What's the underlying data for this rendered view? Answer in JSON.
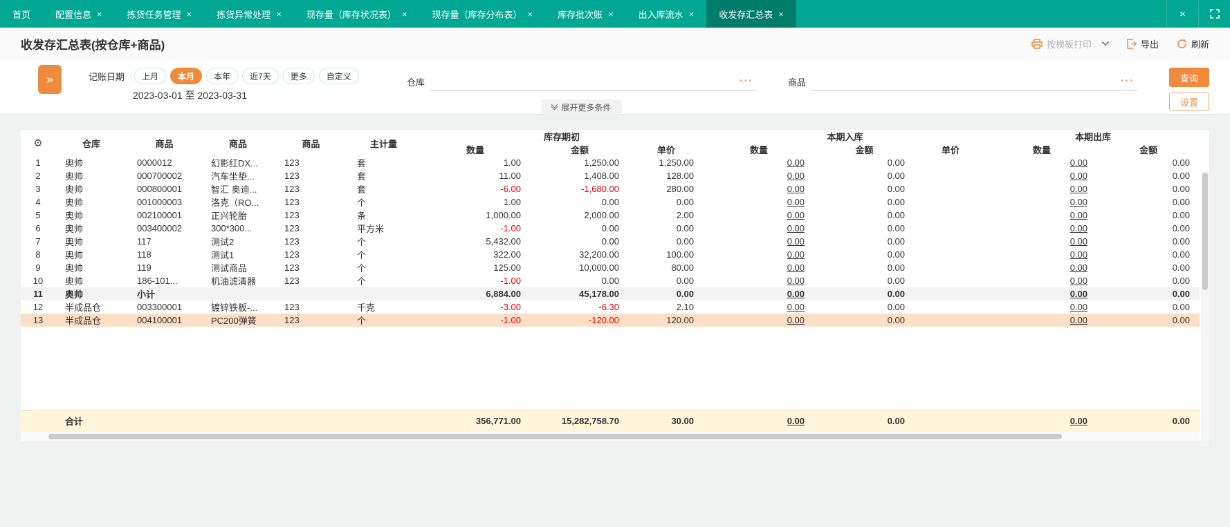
{
  "colors": {
    "teal": "#00a792",
    "teal_active": "#007c6b",
    "orange": "#f08a3c",
    "red_negative": "#e60000",
    "subtotal_bg": "#f3f3f3",
    "selected_row_bg": "#fcdfc6",
    "total_bg": "#fdf6da",
    "header_bg": "#ebebeb"
  },
  "tabs": {
    "items": [
      {
        "label": "首页",
        "closable": false
      },
      {
        "label": "配置信息",
        "closable": true
      },
      {
        "label": "拣货任务管理",
        "closable": true
      },
      {
        "label": "拣货异常处理",
        "closable": true
      },
      {
        "label": "现存量（库存状况表）",
        "closable": true
      },
      {
        "label": "现存量（库存分布表）",
        "closable": true
      },
      {
        "label": "库存批次账",
        "closable": true
      },
      {
        "label": "出入库流水",
        "closable": true
      },
      {
        "label": "收发存汇总表",
        "closable": true
      }
    ],
    "active_index": 8,
    "close_glyph": "×"
  },
  "title": "收发存汇总表(按仓库+商品)",
  "toolbar": {
    "print_label": "按模板打印",
    "export_label": "导出",
    "refresh_label": "刷新"
  },
  "filters": {
    "date_label": "记账日期",
    "date_presets": [
      {
        "label": "上月",
        "active": false
      },
      {
        "label": "本月",
        "active": true
      },
      {
        "label": "本年",
        "active": false
      },
      {
        "label": "近7天",
        "active": false
      },
      {
        "label": "更多",
        "active": false
      },
      {
        "label": "自定义",
        "active": false
      }
    ],
    "date_range": "2023-03-01 至 2023-03-31",
    "warehouse_label": "仓库",
    "product_label": "商品",
    "more_glyph": "···",
    "search_label": "查询",
    "settings_label": "设置",
    "expand_more_label": "展开更多条件",
    "expander_glyph": "»"
  },
  "table": {
    "left_headers": [
      "仓库",
      "商品",
      "商品",
      "商品",
      "主计量"
    ],
    "group_headers": {
      "opening": "库存期初",
      "inbound": "本期入库",
      "outbound": "本期出库"
    },
    "sub_headers": {
      "qty": "数量",
      "amount": "金额",
      "price": "单价"
    },
    "rows": [
      {
        "num": "1",
        "warehouse": "奥帅",
        "code": "0000012",
        "name": "幻影红DX...",
        "spec": "123",
        "unit": "套",
        "opening_qty": "1.00",
        "opening_amount": "1,250.00",
        "opening_price": "1,250.00",
        "inbound_qty": "0.00",
        "inbound_amount": "0.00",
        "inbound_price": "",
        "outbound_qty": "0.00",
        "outbound_amount": "0.00",
        "red": [],
        "style": "normal"
      },
      {
        "num": "2",
        "warehouse": "奥帅",
        "code": "000700002",
        "name": "汽车坐垫...",
        "spec": "123",
        "unit": "套",
        "opening_qty": "11.00",
        "opening_amount": "1,408.00",
        "opening_price": "128.00",
        "inbound_qty": "0.00",
        "inbound_amount": "0.00",
        "inbound_price": "",
        "outbound_qty": "0.00",
        "outbound_amount": "0.00",
        "red": [],
        "style": "normal"
      },
      {
        "num": "3",
        "warehouse": "奥帅",
        "code": "000800001",
        "name": "智汇 奥迪...",
        "spec": "123",
        "unit": "套",
        "opening_qty": "-6.00",
        "opening_amount": "-1,680.00",
        "opening_price": "280.00",
        "inbound_qty": "0.00",
        "inbound_amount": "0.00",
        "inbound_price": "",
        "outbound_qty": "0.00",
        "outbound_amount": "0.00",
        "red": [
          "opening_qty",
          "opening_amount"
        ],
        "style": "normal"
      },
      {
        "num": "4",
        "warehouse": "奥帅",
        "code": "001000003",
        "name": "洛克（RO...",
        "spec": "123",
        "unit": "个",
        "opening_qty": "1.00",
        "opening_amount": "0.00",
        "opening_price": "0.00",
        "inbound_qty": "0.00",
        "inbound_amount": "0.00",
        "inbound_price": "",
        "outbound_qty": "0.00",
        "outbound_amount": "0.00",
        "red": [],
        "style": "normal"
      },
      {
        "num": "5",
        "warehouse": "奥帅",
        "code": "002100001",
        "name": "正兴轮胎",
        "spec": "123",
        "unit": "条",
        "opening_qty": "1,000.00",
        "opening_amount": "2,000.00",
        "opening_price": "2.00",
        "inbound_qty": "0.00",
        "inbound_amount": "0.00",
        "inbound_price": "",
        "outbound_qty": "0.00",
        "outbound_amount": "0.00",
        "red": [],
        "style": "normal"
      },
      {
        "num": "6",
        "warehouse": "奥帅",
        "code": "003400002",
        "name": "300*300...",
        "spec": "123",
        "unit": "平方米",
        "opening_qty": "-1.00",
        "opening_amount": "0.00",
        "opening_price": "0.00",
        "inbound_qty": "0.00",
        "inbound_amount": "0.00",
        "inbound_price": "",
        "outbound_qty": "0.00",
        "outbound_amount": "0.00",
        "red": [
          "opening_qty"
        ],
        "style": "normal"
      },
      {
        "num": "7",
        "warehouse": "奥帅",
        "code": "117",
        "name": "测试2",
        "spec": "123",
        "unit": "个",
        "opening_qty": "5,432.00",
        "opening_amount": "0.00",
        "opening_price": "0.00",
        "inbound_qty": "0.00",
        "inbound_amount": "0.00",
        "inbound_price": "",
        "outbound_qty": "0.00",
        "outbound_amount": "0.00",
        "red": [],
        "style": "normal"
      },
      {
        "num": "8",
        "warehouse": "奥帅",
        "code": "118",
        "name": "测试1",
        "spec": "123",
        "unit": "个",
        "opening_qty": "322.00",
        "opening_amount": "32,200.00",
        "opening_price": "100.00",
        "inbound_qty": "0.00",
        "inbound_amount": "0.00",
        "inbound_price": "",
        "outbound_qty": "0.00",
        "outbound_amount": "0.00",
        "red": [],
        "style": "normal"
      },
      {
        "num": "9",
        "warehouse": "奥帅",
        "code": "119",
        "name": "测试商品",
        "spec": "123",
        "unit": "个",
        "opening_qty": "125.00",
        "opening_amount": "10,000.00",
        "opening_price": "80.00",
        "inbound_qty": "0.00",
        "inbound_amount": "0.00",
        "inbound_price": "",
        "outbound_qty": "0.00",
        "outbound_amount": "0.00",
        "red": [],
        "style": "normal"
      },
      {
        "num": "10",
        "warehouse": "奥帅",
        "code": "186-101...",
        "name": "机油滤清器",
        "spec": "123",
        "unit": "个",
        "opening_qty": "-1.00",
        "opening_amount": "0.00",
        "opening_price": "0.00",
        "inbound_qty": "0.00",
        "inbound_amount": "0.00",
        "inbound_price": "",
        "outbound_qty": "0.00",
        "outbound_amount": "0.00",
        "red": [
          "opening_qty"
        ],
        "style": "normal"
      },
      {
        "num": "11",
        "warehouse": "奥帅",
        "code": "小计",
        "name": "",
        "spec": "",
        "unit": "",
        "opening_qty": "6,884.00",
        "opening_amount": "45,178.00",
        "opening_price": "0.00",
        "inbound_qty": "0.00",
        "inbound_amount": "0.00",
        "inbound_price": "",
        "outbound_qty": "0.00",
        "outbound_amount": "0.00",
        "red": [],
        "style": "subtotal"
      },
      {
        "num": "12",
        "warehouse": "半成品仓",
        "code": "003300001",
        "name": "镀锌铁板-...",
        "spec": "123",
        "unit": "千克",
        "opening_qty": "-3.00",
        "opening_amount": "-6.30",
        "opening_price": "2.10",
        "inbound_qty": "0.00",
        "inbound_amount": "0.00",
        "inbound_price": "",
        "outbound_qty": "0.00",
        "outbound_amount": "0.00",
        "red": [
          "opening_qty",
          "opening_amount"
        ],
        "style": "normal"
      },
      {
        "num": "13",
        "warehouse": "半成品仓",
        "code": "004100001",
        "name": "PC200弹簧",
        "spec": "123",
        "unit": "个",
        "opening_qty": "-1.00",
        "opening_amount": "-120.00",
        "opening_price": "120.00",
        "inbound_qty": "0.00",
        "inbound_amount": "0.00",
        "inbound_price": "",
        "outbound_qty": "0.00",
        "outbound_amount": "0.00",
        "red": [
          "opening_qty",
          "opening_amount"
        ],
        "style": "selected"
      }
    ],
    "total_row": {
      "num": "",
      "warehouse": "合计",
      "code": "",
      "name": "",
      "spec": "",
      "unit": "",
      "opening_qty": "356,771.00",
      "opening_amount": "15,282,758.70",
      "opening_price": "30.00",
      "inbound_qty": "0.00",
      "inbound_amount": "0.00",
      "inbound_price": "",
      "outbound_qty": "0.00",
      "outbound_amount": "0.00",
      "red": [],
      "style": "total"
    }
  }
}
